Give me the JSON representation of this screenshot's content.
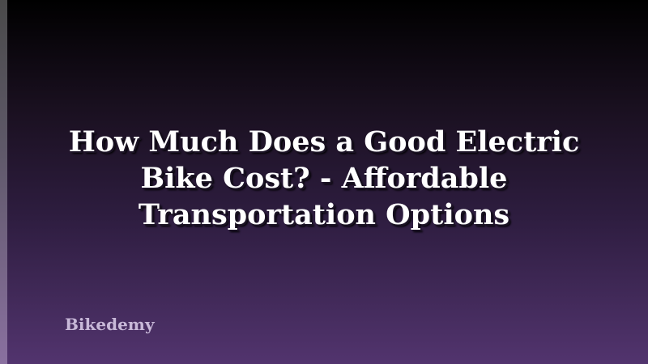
{
  "title": "How Much Does a Good Electric Bike Cost? - Affordable Transportation Options",
  "brand": "Bikedemy",
  "colors": {
    "background_top": "#000000",
    "background_bottom": "#52346e",
    "title": "#ffffff",
    "brand": "#c8b8d8"
  }
}
